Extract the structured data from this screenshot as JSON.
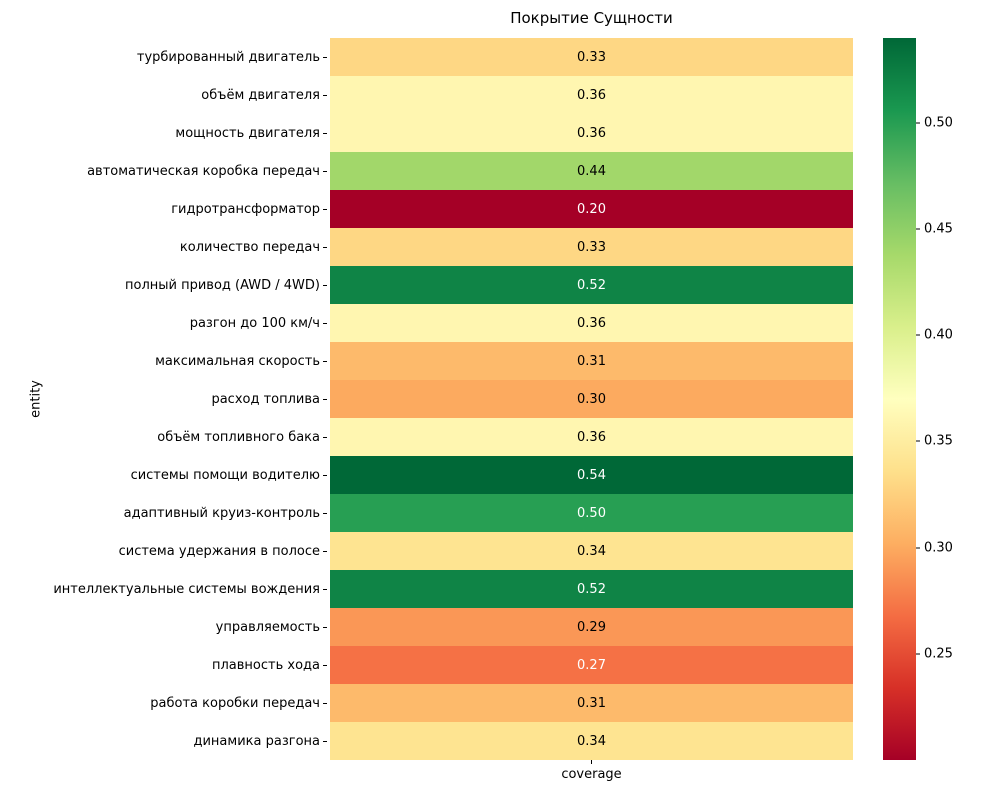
{
  "chart_data": {
    "type": "heatmap",
    "title": "Покрытие Сущности",
    "xlabel": "coverage",
    "ylabel": "entity",
    "columns": [
      "coverage"
    ],
    "rows": [
      "турбированный двигатель",
      "объём двигателя",
      "мощность двигателя",
      "автоматическая коробка передач",
      "гидротрансформатор",
      "количество передач",
      "полный привод (AWD / 4WD)",
      "разгон до 100 км/ч",
      "максимальная скорость",
      "расход топлива",
      "объём топливного бака",
      "системы помощи водителю",
      "адаптивный круиз-контроль",
      "система удержания в полосе",
      "интеллектуальные системы вождения",
      "управляемость",
      "плавность хода",
      "работа коробки передач",
      "динамика разгона"
    ],
    "values": [
      0.33,
      0.36,
      0.36,
      0.44,
      0.2,
      0.33,
      0.52,
      0.36,
      0.31,
      0.3,
      0.36,
      0.54,
      0.5,
      0.34,
      0.52,
      0.29,
      0.27,
      0.31,
      0.34
    ],
    "vmin": 0.2,
    "vmax": 0.54,
    "colormap": "RdYlGn",
    "colormap_colors": [
      "#a50026",
      "#d73027",
      "#f46d43",
      "#fdae61",
      "#fee08b",
      "#ffffbf",
      "#d9ef8b",
      "#a6d96a",
      "#66bd63",
      "#1a9850",
      "#006837"
    ],
    "colorbar_ticks": [
      0.5,
      0.45,
      0.4,
      0.35,
      0.3,
      0.25
    ],
    "annotation_text_colors": {
      "dark": "#000000",
      "light": "#ffffff"
    },
    "legend_position": "right-colorbar",
    "grid": false
  }
}
